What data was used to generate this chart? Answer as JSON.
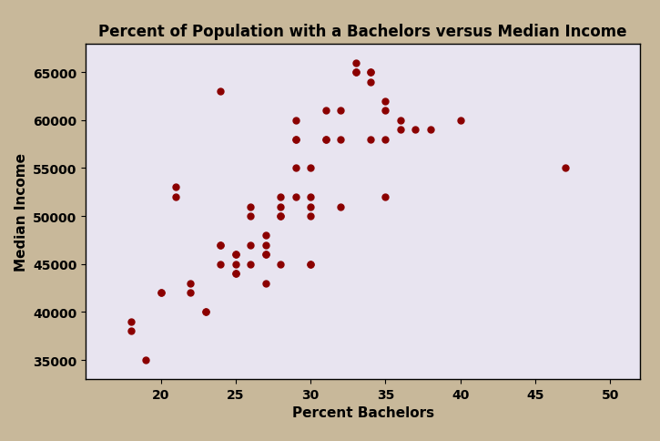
{
  "title": "Percent of Population with a Bachelors versus Median Income",
  "xlabel": "Percent Bachelors",
  "ylabel": "Median Income",
  "xlim": [
    15,
    52
  ],
  "ylim": [
    33000,
    68000
  ],
  "xticks": [
    20,
    25,
    30,
    35,
    40,
    45,
    50
  ],
  "yticks": [
    35000,
    40000,
    45000,
    50000,
    55000,
    60000,
    65000
  ],
  "background_color": "#e8e4f0",
  "outer_background": "#c8b89a",
  "dot_color": "#8b0000",
  "dot_size": 25,
  "title_fontsize": 12,
  "label_fontsize": 11,
  "tick_fontsize": 10,
  "x": [
    18,
    18,
    19,
    20,
    20,
    21,
    21,
    22,
    22,
    23,
    23,
    24,
    24,
    24,
    24,
    25,
    25,
    25,
    25,
    25,
    26,
    26,
    26,
    26,
    27,
    27,
    27,
    27,
    27,
    28,
    28,
    28,
    28,
    28,
    29,
    29,
    29,
    29,
    29,
    30,
    30,
    30,
    30,
    30,
    30,
    31,
    31,
    31,
    32,
    32,
    32,
    33,
    33,
    33,
    34,
    34,
    34,
    34,
    35,
    35,
    35,
    35,
    36,
    36,
    37,
    38,
    40,
    47
  ],
  "y": [
    39000,
    38000,
    35000,
    42000,
    42000,
    53000,
    52000,
    42000,
    43000,
    40000,
    40000,
    63000,
    45000,
    47000,
    47000,
    45000,
    46000,
    46000,
    44000,
    44000,
    45000,
    47000,
    51000,
    50000,
    46000,
    47000,
    46000,
    48000,
    43000,
    51000,
    52000,
    50000,
    50000,
    45000,
    55000,
    60000,
    58000,
    58000,
    52000,
    50000,
    55000,
    51000,
    52000,
    45000,
    45000,
    58000,
    58000,
    61000,
    61000,
    58000,
    51000,
    65000,
    65000,
    66000,
    65000,
    65000,
    64000,
    58000,
    62000,
    52000,
    58000,
    61000,
    60000,
    59000,
    59000,
    59000,
    60000,
    55000
  ]
}
